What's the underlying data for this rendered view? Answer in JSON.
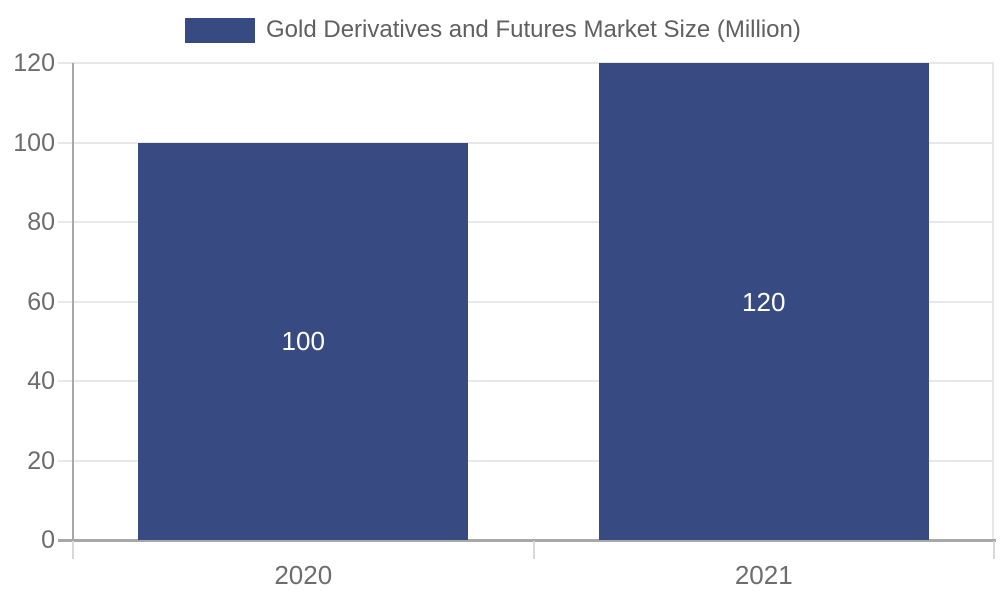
{
  "legend": {
    "label": "Gold Derivatives and Futures Market Size (Million)"
  },
  "chart_data": {
    "type": "bar",
    "title": "Gold Derivatives and Futures Market Size (Million)",
    "categories": [
      "2020",
      "2021"
    ],
    "series": [
      {
        "name": "Gold Derivatives and Futures Market Size (Million)",
        "values": [
          100,
          120
        ]
      }
    ],
    "data_labels": [
      "100",
      "120"
    ],
    "yticks": [
      0,
      20,
      40,
      60,
      80,
      100,
      120
    ],
    "ylim": [
      0,
      120
    ],
    "xlabel": "",
    "ylabel": "",
    "grid": true,
    "legend_position": "top-center",
    "colors": {
      "bar": "#374b82",
      "data_label_text": "#ffffff",
      "axis_text": "#6d6d6d",
      "legend_text": "#606060",
      "gridline": "#e8e8e8",
      "axis_line": "#a8a8a8",
      "tick_line": "#d8d8d8",
      "background": "#ffffff"
    }
  }
}
